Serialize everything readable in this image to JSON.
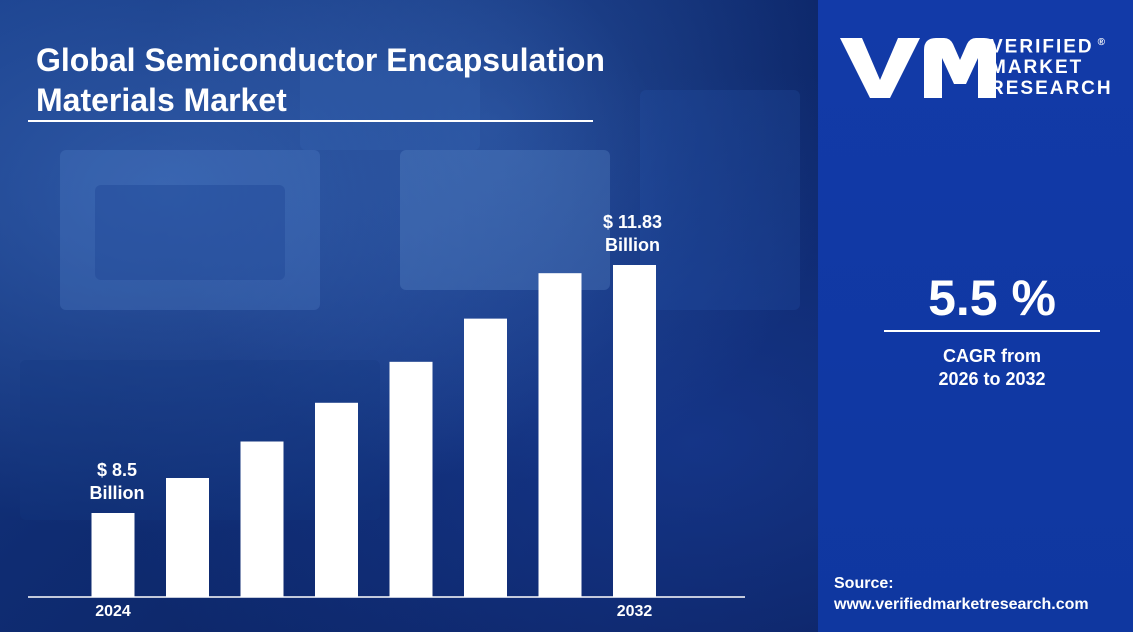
{
  "header": {
    "title_line1": "Global Semiconductor Encapsulation",
    "title_line2": "Materials Market"
  },
  "brand": {
    "line1": "VERIFIED",
    "line2": "MARKET",
    "line3": "RESEARCH",
    "registered": "®",
    "logo_icon": "vmr-logo-icon"
  },
  "cagr": {
    "value": "5.5 %",
    "label_line1": "CAGR from",
    "label_line2": "2026 to 2032"
  },
  "source": {
    "label": "Source:",
    "url": "www.verifiedmarketresearch.com"
  },
  "colors": {
    "bar": "#ffffff",
    "panel": "#123aa8",
    "background": "#0f2c72"
  },
  "chart_data": {
    "type": "bar",
    "categories": [
      "2024",
      "",
      "",
      "",
      "",
      "",
      "",
      "2032"
    ],
    "values": [
      8.5,
      8.97,
      9.46,
      9.98,
      10.53,
      11.11,
      11.72,
      11.83
    ],
    "tick_labels": [
      "2024",
      "2032"
    ],
    "data_labels": [
      {
        "index": 0,
        "line1": "$ 8.5",
        "line2": "Billion"
      },
      {
        "index": 7,
        "line1": "$ 11.83",
        "line2": "Billion"
      }
    ],
    "title": "Global Semiconductor Encapsulation Materials Market",
    "xlabel": "",
    "ylabel": "",
    "grid": false,
    "legend": "none"
  }
}
